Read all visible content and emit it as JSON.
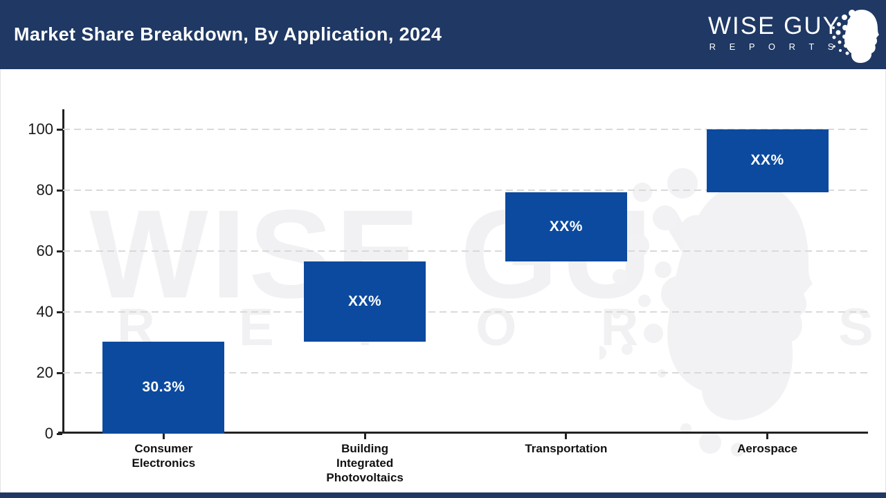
{
  "header": {
    "title": "Market Share Breakdown, By Application, 2024",
    "logo": {
      "line1": "WISE GUY",
      "line2": "R E P O R T S"
    }
  },
  "watermark": {
    "line1": "WISE GUY",
    "line2": "R E P O R T S"
  },
  "colors": {
    "header_bg": "#1F3864",
    "bar": "#0B4A9E",
    "grid": "#D9D9D9",
    "axis": "#222222",
    "watermark": "#F1F1F3",
    "title_text": "#FFFFFF",
    "bar_label_text": "#FFFFFF"
  },
  "chart_data": {
    "type": "bar",
    "subtype": "waterfall",
    "title": "Market Share Breakdown, By Application, 2024",
    "categories": [
      "Consumer Electronics",
      "Building Integrated Photovoltaics",
      "Transportation",
      "Aerospace"
    ],
    "bars": [
      {
        "category": "Consumer Electronics",
        "start": 0,
        "end": 30.3,
        "value": 30.3,
        "label": "30.3%"
      },
      {
        "category": "Building Integrated Photovoltaics",
        "start": 30.3,
        "end": 56.6,
        "value": 26.3,
        "label": "XX%"
      },
      {
        "category": "Transportation",
        "start": 56.6,
        "end": 79.4,
        "value": 22.8,
        "label": "XX%"
      },
      {
        "category": "Aerospace",
        "start": 79.4,
        "end": 100,
        "value": 20.6,
        "label": "XX%"
      }
    ],
    "xlabel": "",
    "ylabel": "",
    "ylim": [
      0,
      100
    ],
    "yticks": [
      0,
      20,
      40,
      60,
      80,
      100
    ],
    "grid": "horizontal-dashed",
    "legend": "none"
  }
}
